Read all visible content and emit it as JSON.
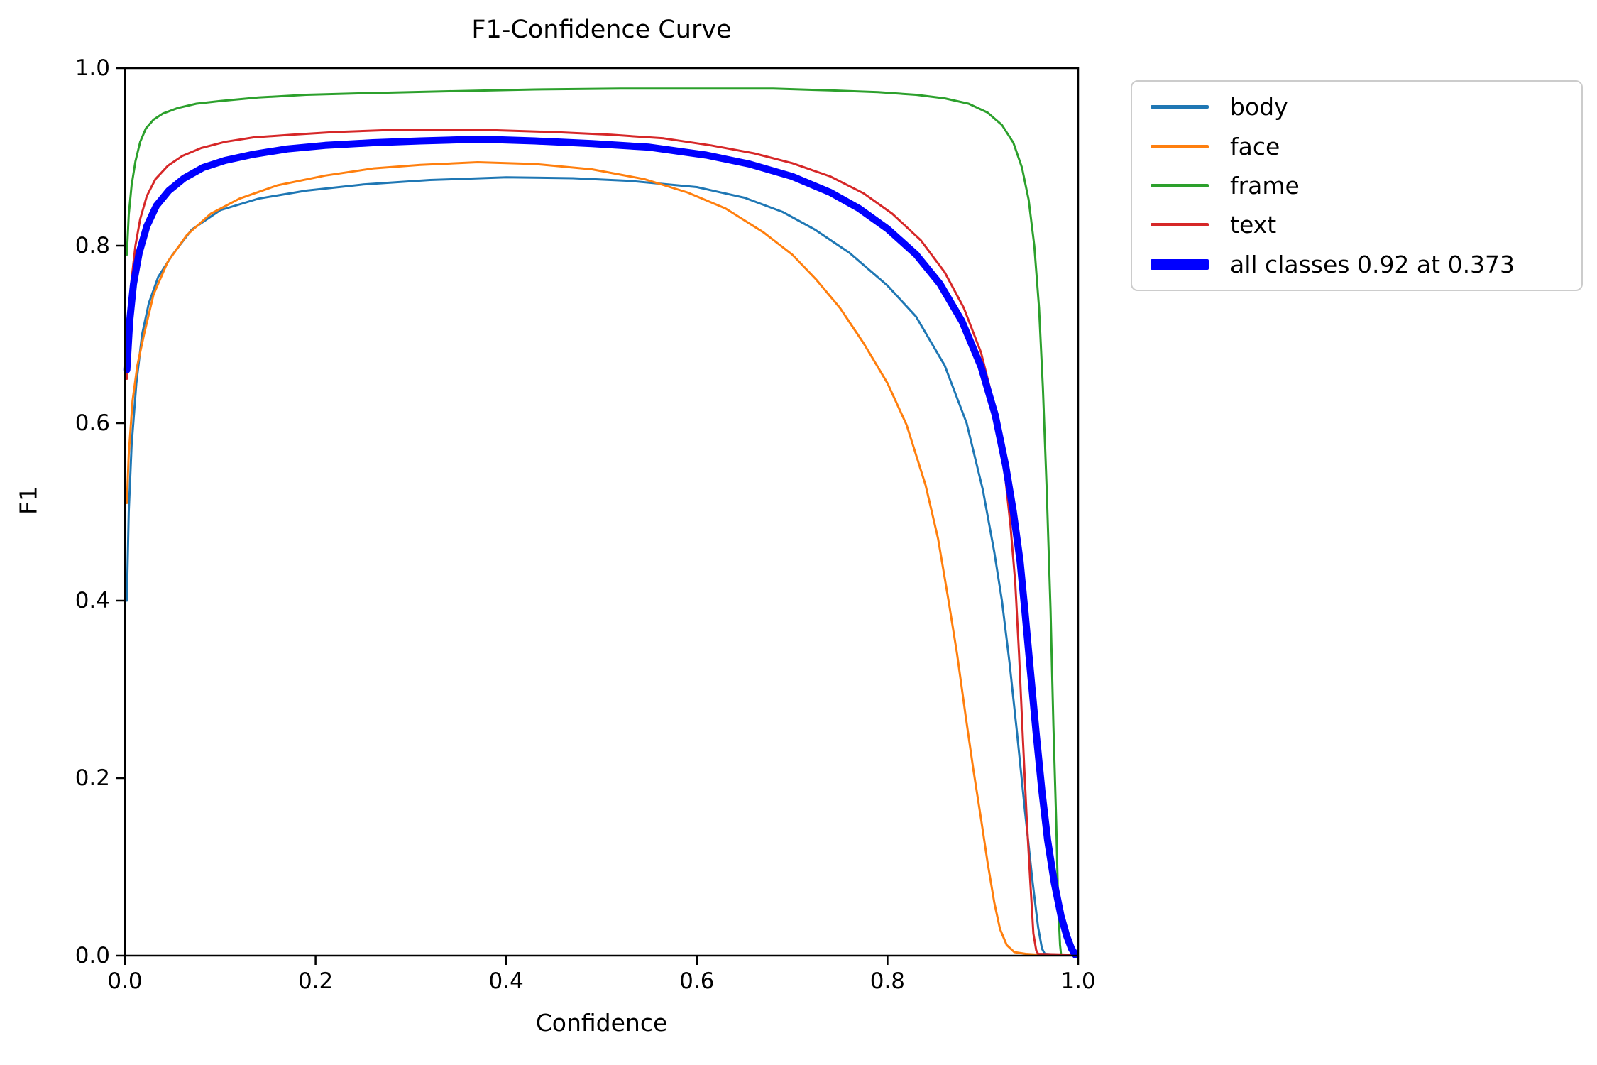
{
  "chart_data": {
    "type": "line",
    "title": "F1-Confidence Curve",
    "xlabel": "Confidence",
    "ylabel": "F1",
    "xlim": [
      0.0,
      1.0
    ],
    "ylim": [
      0.0,
      1.0
    ],
    "xticks": [
      "0.0",
      "0.2",
      "0.4",
      "0.6",
      "0.8",
      "1.0"
    ],
    "yticks": [
      "0.0",
      "0.2",
      "0.4",
      "0.6",
      "0.8",
      "1.0"
    ],
    "grid": false,
    "legend_position": "outside-upper-right",
    "best_f1": "0.92",
    "best_confidence": "0.373",
    "axis_color": "#000000",
    "legend_border_color": "#cccccc",
    "series": [
      {
        "name": "body",
        "color": "#1f77b4",
        "line_width": 3,
        "legend_swatch_height": 5,
        "points": [
          [
            0.002,
            0.4
          ],
          [
            0.004,
            0.5
          ],
          [
            0.007,
            0.575
          ],
          [
            0.012,
            0.645
          ],
          [
            0.018,
            0.7
          ],
          [
            0.025,
            0.735
          ],
          [
            0.035,
            0.765
          ],
          [
            0.05,
            0.79
          ],
          [
            0.07,
            0.818
          ],
          [
            0.1,
            0.84
          ],
          [
            0.14,
            0.853
          ],
          [
            0.19,
            0.862
          ],
          [
            0.25,
            0.869
          ],
          [
            0.32,
            0.874
          ],
          [
            0.4,
            0.877
          ],
          [
            0.47,
            0.876
          ],
          [
            0.53,
            0.873
          ],
          [
            0.6,
            0.866
          ],
          [
            0.65,
            0.854
          ],
          [
            0.69,
            0.838
          ],
          [
            0.724,
            0.818
          ],
          [
            0.76,
            0.792
          ],
          [
            0.8,
            0.755
          ],
          [
            0.83,
            0.72
          ],
          [
            0.86,
            0.665
          ],
          [
            0.883,
            0.6
          ],
          [
            0.9,
            0.525
          ],
          [
            0.912,
            0.455
          ],
          [
            0.92,
            0.4
          ],
          [
            0.928,
            0.33
          ],
          [
            0.936,
            0.25
          ],
          [
            0.944,
            0.165
          ],
          [
            0.952,
            0.085
          ],
          [
            0.958,
            0.032
          ],
          [
            0.962,
            0.008
          ],
          [
            0.965,
            0.002
          ],
          [
            0.98,
            0.001
          ]
        ]
      },
      {
        "name": "face",
        "color": "#ff7f0e",
        "line_width": 3,
        "legend_swatch_height": 5,
        "points": [
          [
            0.002,
            0.51
          ],
          [
            0.004,
            0.565
          ],
          [
            0.008,
            0.625
          ],
          [
            0.013,
            0.665
          ],
          [
            0.02,
            0.7
          ],
          [
            0.03,
            0.745
          ],
          [
            0.045,
            0.782
          ],
          [
            0.065,
            0.812
          ],
          [
            0.09,
            0.836
          ],
          [
            0.12,
            0.853
          ],
          [
            0.16,
            0.868
          ],
          [
            0.21,
            0.879
          ],
          [
            0.26,
            0.887
          ],
          [
            0.31,
            0.891
          ],
          [
            0.37,
            0.894
          ],
          [
            0.43,
            0.892
          ],
          [
            0.49,
            0.886
          ],
          [
            0.545,
            0.875
          ],
          [
            0.59,
            0.86
          ],
          [
            0.63,
            0.842
          ],
          [
            0.67,
            0.815
          ],
          [
            0.7,
            0.79
          ],
          [
            0.725,
            0.762
          ],
          [
            0.75,
            0.73
          ],
          [
            0.775,
            0.69
          ],
          [
            0.8,
            0.645
          ],
          [
            0.82,
            0.598
          ],
          [
            0.84,
            0.53
          ],
          [
            0.853,
            0.47
          ],
          [
            0.864,
            0.4
          ],
          [
            0.873,
            0.34
          ],
          [
            0.882,
            0.27
          ],
          [
            0.89,
            0.21
          ],
          [
            0.898,
            0.155
          ],
          [
            0.905,
            0.105
          ],
          [
            0.912,
            0.06
          ],
          [
            0.918,
            0.03
          ],
          [
            0.925,
            0.012
          ],
          [
            0.933,
            0.004
          ],
          [
            0.945,
            0.002
          ],
          [
            0.96,
            0.001
          ]
        ]
      },
      {
        "name": "frame",
        "color": "#2ca02c",
        "line_width": 3,
        "legend_swatch_height": 5,
        "points": [
          [
            0.002,
            0.79
          ],
          [
            0.004,
            0.835
          ],
          [
            0.007,
            0.868
          ],
          [
            0.011,
            0.895
          ],
          [
            0.016,
            0.917
          ],
          [
            0.022,
            0.932
          ],
          [
            0.03,
            0.942
          ],
          [
            0.04,
            0.949
          ],
          [
            0.055,
            0.955
          ],
          [
            0.075,
            0.96
          ],
          [
            0.1,
            0.963
          ],
          [
            0.14,
            0.967
          ],
          [
            0.19,
            0.97
          ],
          [
            0.26,
            0.972
          ],
          [
            0.34,
            0.974
          ],
          [
            0.43,
            0.976
          ],
          [
            0.52,
            0.977
          ],
          [
            0.61,
            0.977
          ],
          [
            0.68,
            0.977
          ],
          [
            0.74,
            0.975
          ],
          [
            0.79,
            0.973
          ],
          [
            0.83,
            0.97
          ],
          [
            0.86,
            0.966
          ],
          [
            0.885,
            0.96
          ],
          [
            0.905,
            0.95
          ],
          [
            0.92,
            0.936
          ],
          [
            0.932,
            0.916
          ],
          [
            0.941,
            0.888
          ],
          [
            0.948,
            0.852
          ],
          [
            0.954,
            0.8
          ],
          [
            0.959,
            0.73
          ],
          [
            0.963,
            0.64
          ],
          [
            0.967,
            0.525
          ],
          [
            0.971,
            0.39
          ],
          [
            0.974,
            0.26
          ],
          [
            0.977,
            0.15
          ],
          [
            0.979,
            0.06
          ],
          [
            0.981,
            0.012
          ],
          [
            0.982,
            0.002
          ]
        ]
      },
      {
        "name": "text",
        "color": "#d62728",
        "line_width": 3,
        "legend_swatch_height": 5,
        "points": [
          [
            0.002,
            0.65
          ],
          [
            0.004,
            0.715
          ],
          [
            0.007,
            0.762
          ],
          [
            0.011,
            0.8
          ],
          [
            0.016,
            0.83
          ],
          [
            0.023,
            0.856
          ],
          [
            0.032,
            0.875
          ],
          [
            0.045,
            0.89
          ],
          [
            0.06,
            0.901
          ],
          [
            0.08,
            0.91
          ],
          [
            0.105,
            0.917
          ],
          [
            0.135,
            0.922
          ],
          [
            0.175,
            0.925
          ],
          [
            0.22,
            0.928
          ],
          [
            0.27,
            0.93
          ],
          [
            0.33,
            0.93
          ],
          [
            0.39,
            0.93
          ],
          [
            0.45,
            0.928
          ],
          [
            0.51,
            0.925
          ],
          [
            0.565,
            0.921
          ],
          [
            0.615,
            0.913
          ],
          [
            0.66,
            0.904
          ],
          [
            0.7,
            0.893
          ],
          [
            0.74,
            0.878
          ],
          [
            0.775,
            0.859
          ],
          [
            0.805,
            0.836
          ],
          [
            0.835,
            0.806
          ],
          [
            0.86,
            0.77
          ],
          [
            0.88,
            0.73
          ],
          [
            0.898,
            0.68
          ],
          [
            0.912,
            0.62
          ],
          [
            0.922,
            0.555
          ],
          [
            0.929,
            0.485
          ],
          [
            0.934,
            0.42
          ],
          [
            0.938,
            0.34
          ],
          [
            0.942,
            0.245
          ],
          [
            0.946,
            0.155
          ],
          [
            0.95,
            0.08
          ],
          [
            0.953,
            0.025
          ],
          [
            0.956,
            0.006
          ],
          [
            0.958,
            0.002
          ],
          [
            0.995,
            0.001
          ]
        ]
      },
      {
        "name": "all classes 0.92 at 0.373",
        "color": "#0000ff",
        "line_width": 10,
        "legend_swatch_height": 15,
        "points": [
          [
            0.002,
            0.66
          ],
          [
            0.005,
            0.715
          ],
          [
            0.009,
            0.757
          ],
          [
            0.015,
            0.792
          ],
          [
            0.023,
            0.822
          ],
          [
            0.033,
            0.845
          ],
          [
            0.046,
            0.862
          ],
          [
            0.062,
            0.876
          ],
          [
            0.082,
            0.888
          ],
          [
            0.105,
            0.896
          ],
          [
            0.135,
            0.903
          ],
          [
            0.17,
            0.909
          ],
          [
            0.21,
            0.913
          ],
          [
            0.26,
            0.916
          ],
          [
            0.31,
            0.918
          ],
          [
            0.373,
            0.92
          ],
          [
            0.43,
            0.918
          ],
          [
            0.49,
            0.915
          ],
          [
            0.55,
            0.911
          ],
          [
            0.61,
            0.902
          ],
          [
            0.655,
            0.892
          ],
          [
            0.7,
            0.878
          ],
          [
            0.74,
            0.86
          ],
          [
            0.77,
            0.842
          ],
          [
            0.8,
            0.819
          ],
          [
            0.83,
            0.79
          ],
          [
            0.855,
            0.757
          ],
          [
            0.878,
            0.715
          ],
          [
            0.898,
            0.664
          ],
          [
            0.913,
            0.609
          ],
          [
            0.924,
            0.552
          ],
          [
            0.932,
            0.5
          ],
          [
            0.939,
            0.445
          ],
          [
            0.944,
            0.39
          ],
          [
            0.95,
            0.32
          ],
          [
            0.956,
            0.25
          ],
          [
            0.962,
            0.185
          ],
          [
            0.968,
            0.13
          ],
          [
            0.975,
            0.082
          ],
          [
            0.982,
            0.045
          ],
          [
            0.988,
            0.022
          ],
          [
            0.993,
            0.008
          ],
          [
            0.997,
            0.001
          ]
        ]
      }
    ]
  }
}
